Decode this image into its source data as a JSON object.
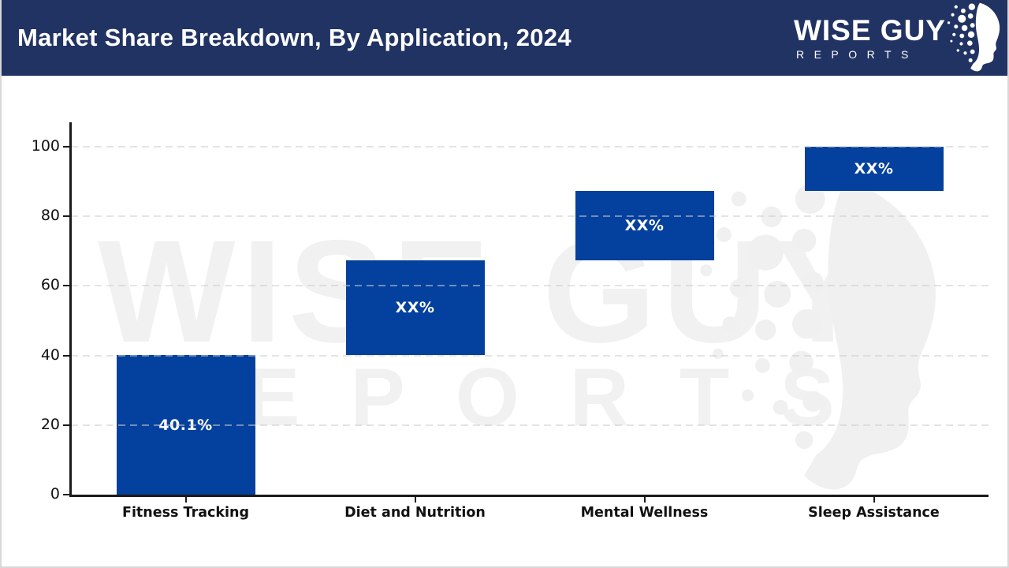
{
  "header": {
    "title": "Market Share Breakdown, By Application, 2024",
    "logo": {
      "line1": "WISE GUY",
      "line2": "REPORTS"
    }
  },
  "watermark": {
    "line1": "WISE GUY",
    "line2": "REPORTS"
  },
  "colors": {
    "header_bg": "#213363",
    "bar": "#04409d",
    "watermark": "#f1f1f1",
    "border": "#d8d8d8",
    "axis_text": "#111111",
    "bar_label_text": "#ffffff"
  },
  "chart_data": {
    "type": "bar",
    "subtype": "waterfall-floating-bars",
    "title": "Market Share Breakdown, By Application, 2024",
    "xlabel": "",
    "ylabel": "",
    "categories": [
      "Fitness Tracking",
      "Diet and Nutrition",
      "Mental Wellness",
      "Sleep Assistance"
    ],
    "bars": [
      {
        "category": "Fitness Tracking",
        "start": 0,
        "end": 40.1,
        "label": "40.1%"
      },
      {
        "category": "Diet and Nutrition",
        "start": 40.1,
        "end": 67.3,
        "label": "XX%"
      },
      {
        "category": "Mental Wellness",
        "start": 67.3,
        "end": 87.4,
        "label": "XX%"
      },
      {
        "category": "Sleep Assistance",
        "start": 87.4,
        "end": 100.1,
        "label": "XX%"
      }
    ],
    "yticks": [
      0,
      20,
      40,
      60,
      80,
      100
    ],
    "ylim": [
      0,
      107
    ],
    "grid": true,
    "legend": false
  }
}
